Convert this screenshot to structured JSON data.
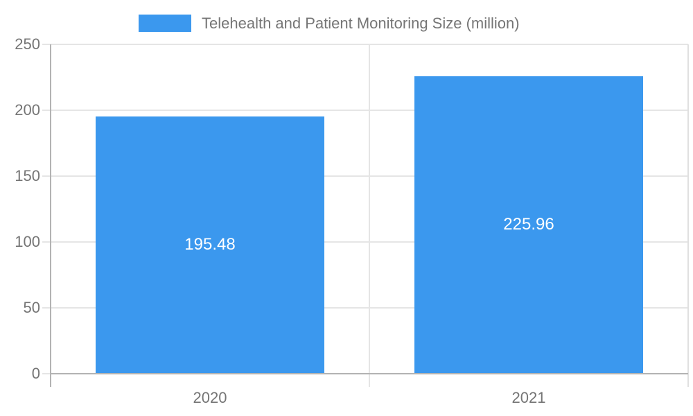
{
  "legend": {
    "label": "Telehealth and Patient Monitoring Size (million)"
  },
  "chart_data": {
    "type": "bar",
    "title": "",
    "categories": [
      "2020",
      "2021"
    ],
    "series": [
      {
        "name": "Telehealth and Patient Monitoring Size (million)",
        "values": [
          195.48,
          225.96
        ]
      }
    ],
    "value_labels": [
      "195.48",
      "225.96"
    ],
    "yticks": [
      0,
      50,
      100,
      150,
      200,
      250
    ],
    "ylim": [
      0,
      250
    ],
    "grid": true,
    "legend_position": "top",
    "colors": {
      "bar": "#3B98EE",
      "text": "#757575",
      "axis": "#B3B3B3",
      "grid": "#E5E5E5",
      "value_label": "#FFFFFF"
    }
  }
}
